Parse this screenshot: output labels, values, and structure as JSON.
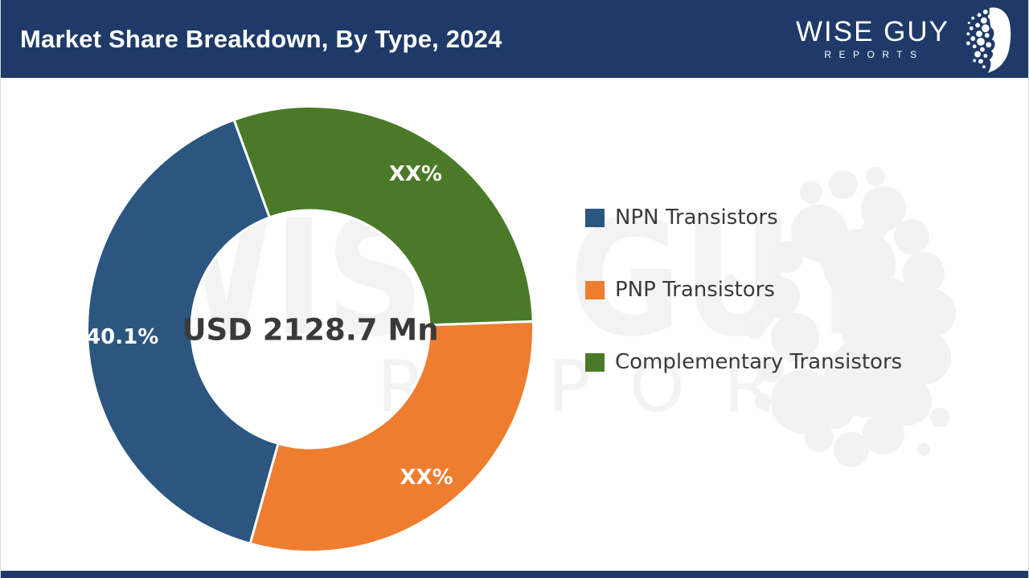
{
  "header": {
    "title": "Market Share Breakdown, By Type, 2024",
    "brand_line1": "WISE GUY",
    "brand_line2": "REPORTS",
    "bg_color": "#1F3A68"
  },
  "watermark": {
    "line1": "WISE GUY",
    "line2": "REPORTS"
  },
  "chart_data": {
    "type": "donut",
    "title": "Market Share Breakdown, By Type, 2024",
    "center_label": "USD 2128.7 Mn",
    "legend_position": "right",
    "start_angle_deg": -110,
    "direction": "counterclockwise",
    "inner_radius_frac": 0.53,
    "segments": [
      {
        "label": "NPN Transistors",
        "value_label": "40.1%",
        "percent": 40.1,
        "color": "#2A567F"
      },
      {
        "label": "PNP Transistors",
        "value_label": "XX%",
        "percent": 29.9,
        "color": "#EE7D30"
      },
      {
        "label": "Complementary Transistors",
        "value_label": "XX%",
        "percent": 30.0,
        "color": "#4A7A28"
      }
    ]
  },
  "footer": {
    "bg_color": "#1F3A68"
  }
}
